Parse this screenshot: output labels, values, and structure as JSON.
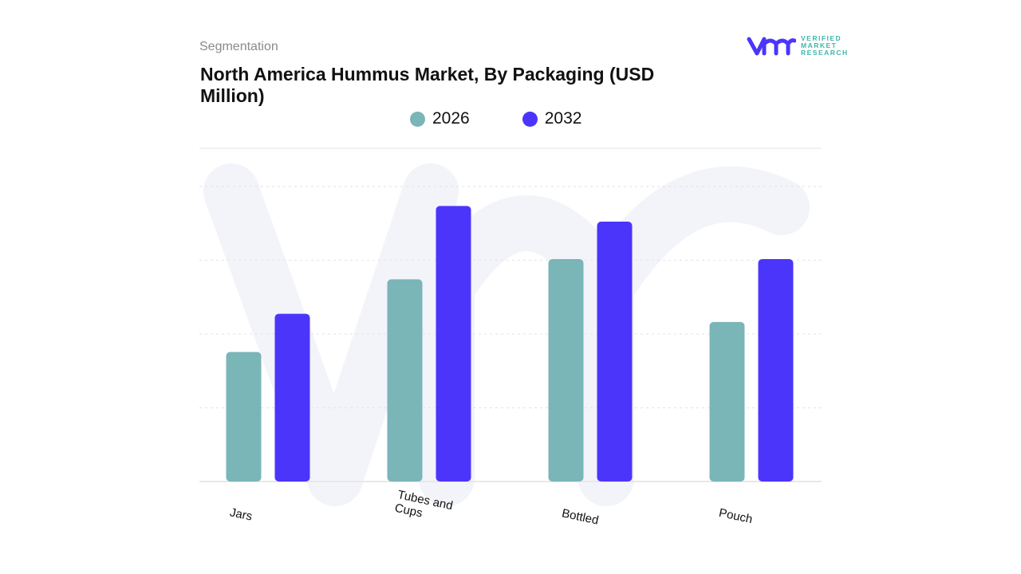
{
  "header": {
    "section": "Segmentation",
    "title": "North America Hummus Market, By Packaging (USD Million)"
  },
  "logo": {
    "line1": "VERIFIED",
    "line2": "MARKET",
    "line3": "RESEARCH"
  },
  "chart_data": {
    "type": "bar",
    "title": "North America Hummus Market, By Packaging (USD Million)",
    "categories": [
      "Jars",
      "Tubes and Cups",
      "Bottled",
      "Pouch"
    ],
    "series": [
      {
        "name": "2026",
        "color": "#7ab5b8",
        "values": [
          1.73,
          2.7,
          2.97,
          2.13
        ]
      },
      {
        "name": "2032",
        "color": "#4b35fb",
        "values": [
          2.24,
          3.68,
          3.47,
          2.97
        ]
      }
    ],
    "xlabel": "",
    "ylabel": "",
    "ylim": [
      0,
      4.45
    ],
    "grid": true,
    "y_tick_labels_shown": false,
    "legend": "top"
  }
}
